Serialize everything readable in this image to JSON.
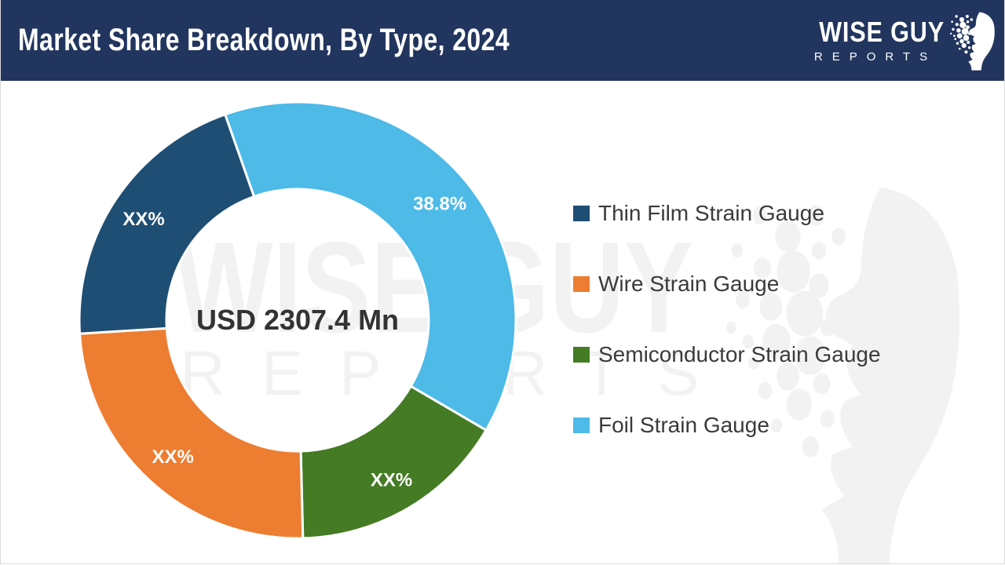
{
  "header": {
    "title": "Market Share Breakdown, By Type, 2024",
    "logo": {
      "line1": "WISE GUY",
      "line2": "REPORTS"
    }
  },
  "watermark": {
    "line1": "WISE GUY",
    "line2": "REPORTS"
  },
  "chart_data": {
    "type": "pie",
    "subtype": "donut",
    "title": "Market Share Breakdown, By Type, 2024",
    "center_label": "USD 2307.4 Mn",
    "start_angle_deg": -19.4,
    "legend_position": "right",
    "segments": [
      {
        "name": "Foil Strain Gauge",
        "value": 38.8,
        "label": "38.8%",
        "color": "#4dbae8"
      },
      {
        "name": "Semiconductor Strain Gauge",
        "value": 16.2,
        "label": "XX%",
        "color": "#457b24"
      },
      {
        "name": "Wire Strain Gauge",
        "value": 24.4,
        "label": "XX%",
        "color": "#ed7d31"
      },
      {
        "name": "Thin Film Strain Gauge",
        "value": 20.6,
        "label": "XX%",
        "color": "#1f4e74"
      }
    ]
  },
  "legend": {
    "items": [
      {
        "label": "Thin Film Strain Gauge",
        "color": "#1f4e74"
      },
      {
        "label": "Wire Strain Gauge",
        "color": "#ed7d31"
      },
      {
        "label": "Semiconductor Strain Gauge",
        "color": "#457b24"
      },
      {
        "label": "Foil Strain Gauge",
        "color": "#4dbae8"
      }
    ]
  }
}
